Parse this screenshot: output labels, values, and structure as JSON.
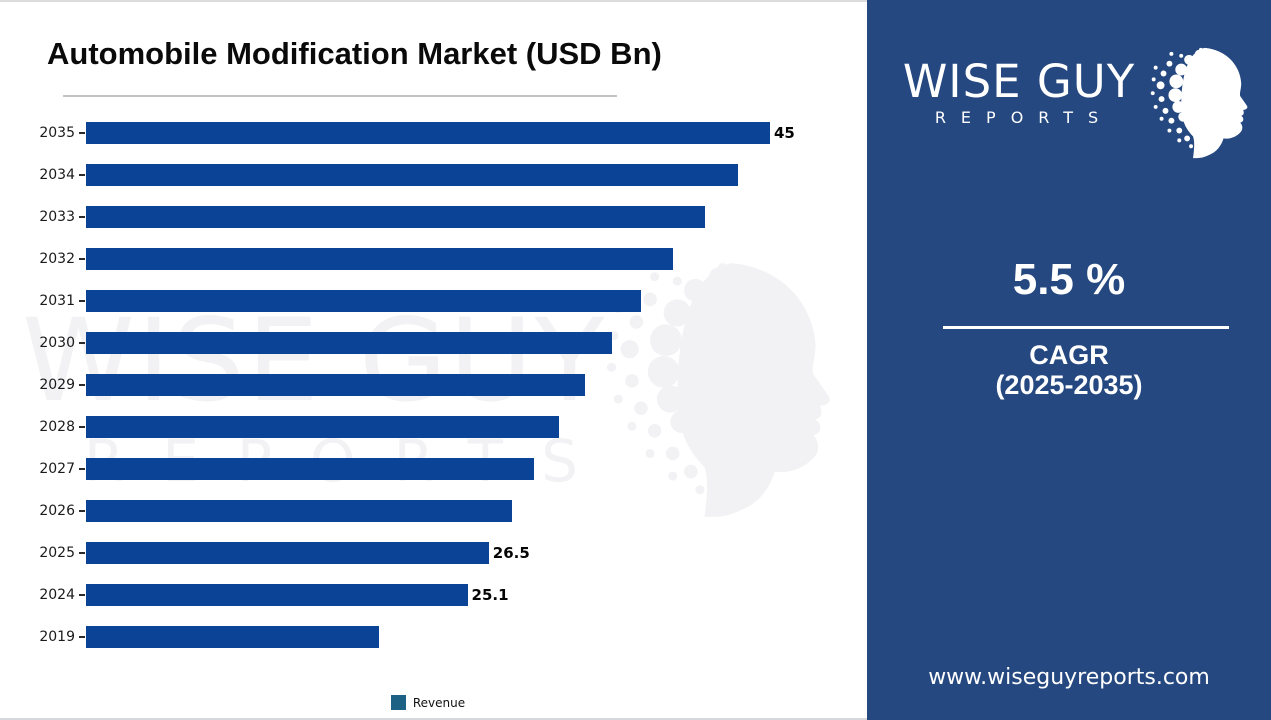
{
  "chart_data": {
    "type": "bar",
    "orientation": "horizontal",
    "title": "Automobile Modification Market (USD Bn)",
    "categories": [
      "2035",
      "2034",
      "2033",
      "2032",
      "2031",
      "2030",
      "2029",
      "2028",
      "2027",
      "2026",
      "2025",
      "2024",
      "2019"
    ],
    "series": [
      {
        "name": "Revenue",
        "values": [
          45,
          42.9,
          40.7,
          38.6,
          36.5,
          34.6,
          32.8,
          31.1,
          29.5,
          28.0,
          26.5,
          25.1,
          19.3
        ],
        "data_labels": [
          "45",
          "",
          "",
          "",
          "",
          "",
          "",
          "",
          "",
          "",
          "26.5",
          "25.1",
          ""
        ]
      }
    ],
    "xlim": [
      0,
      45
    ],
    "grid": false,
    "bar_color": "#0b4397",
    "legend": {
      "label": "Revenue",
      "swatch_color": "#1d6285",
      "position": "bottom-center"
    }
  },
  "watermark": {
    "line1": "WISE GUY",
    "line2": "REPORTS"
  },
  "sidebar": {
    "background_color": "#254880",
    "logo": {
      "title": "WISE GUY",
      "subtitle": "REPORTS"
    },
    "cagr": {
      "value": "5.5 %",
      "label": "CAGR",
      "range": "(2025-2035)"
    },
    "website": "www.wiseguyreports.com"
  },
  "colors": {
    "bar": "#0b4397",
    "sidebar_bg": "#254880",
    "legend_swatch": "#1d6285",
    "watermark": "#f2f2f4",
    "title_underline": "#c3c3c3"
  }
}
